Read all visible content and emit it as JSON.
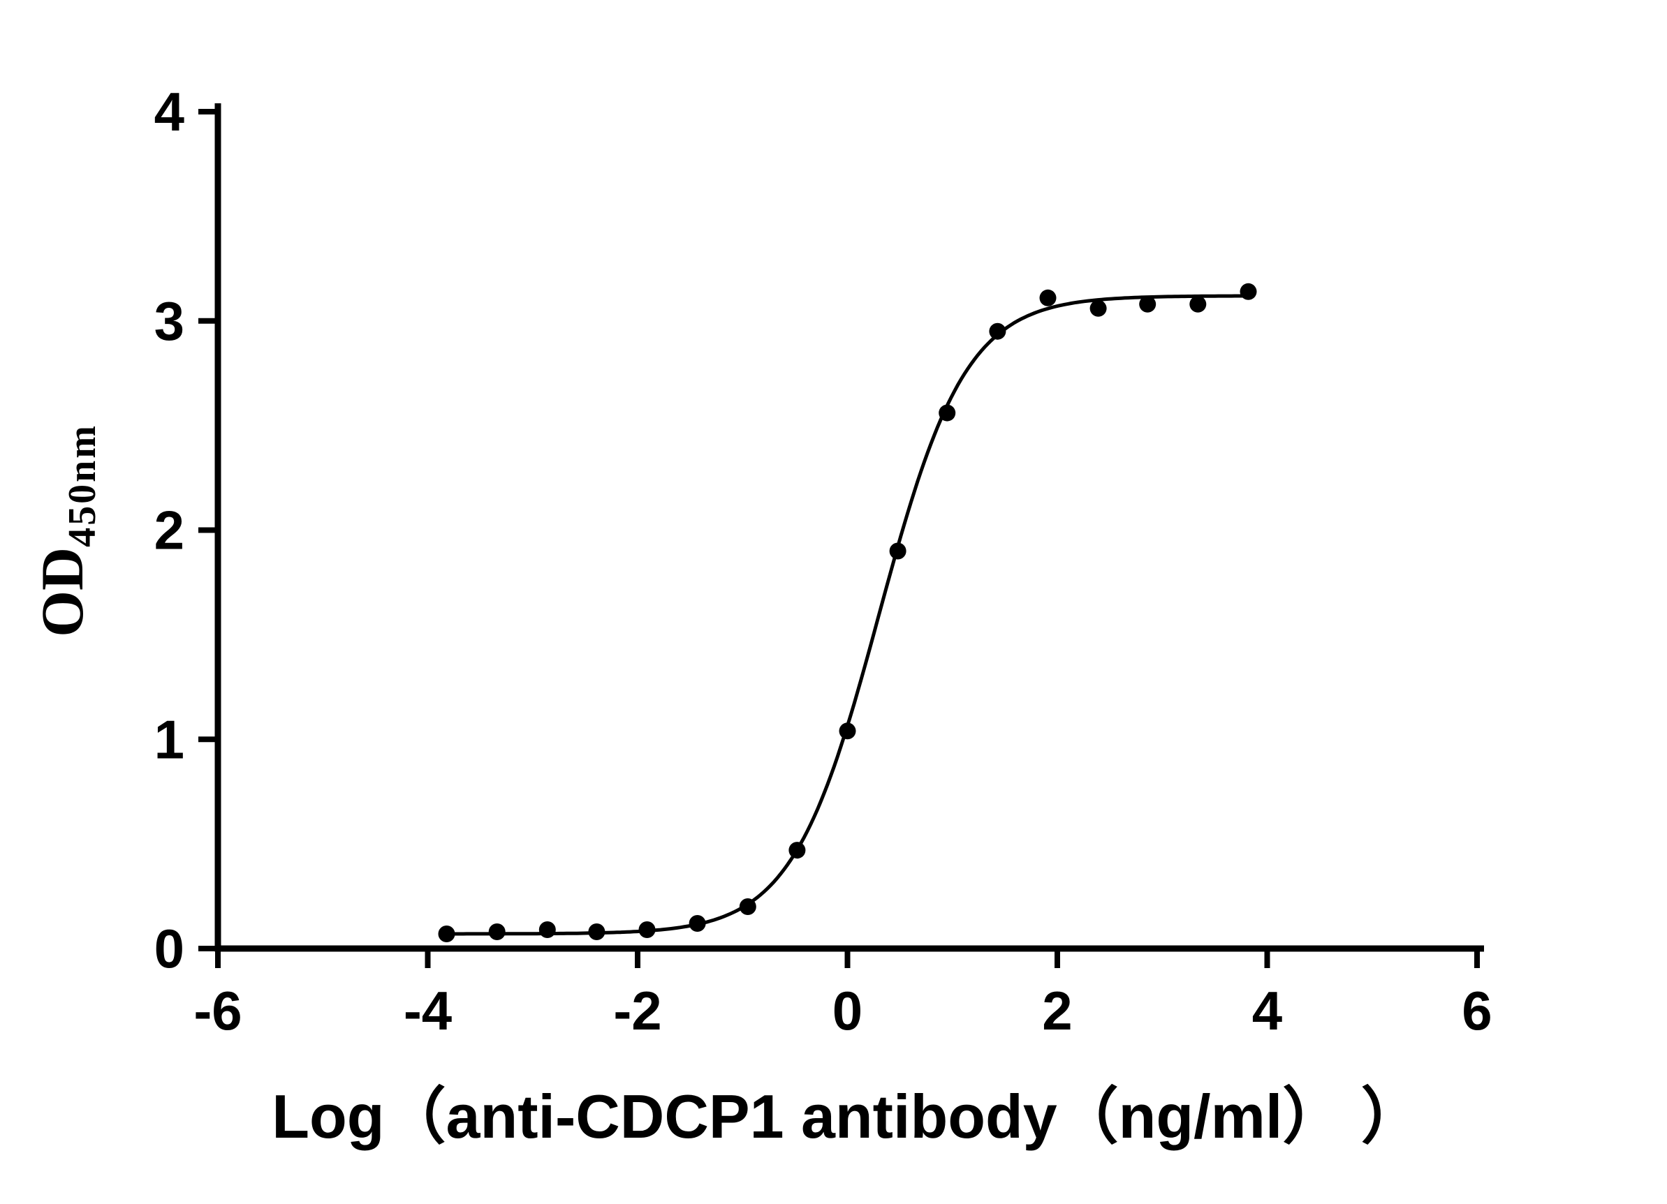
{
  "figure": {
    "background_color": "#ffffff",
    "description": "ELISA binding activity sigmoidal dose-response curve"
  },
  "chart_data": {
    "type": "scatter",
    "title": "",
    "xlabel": "Log（anti-CDCP1 antibody（ng/ml） ）",
    "ylabel_main": "OD",
    "ylabel_sub": "450nm",
    "xlim": [
      -6,
      6
    ],
    "ylim": [
      0,
      4
    ],
    "x_ticks": [
      -6,
      -4,
      -2,
      0,
      2,
      4,
      6
    ],
    "y_ticks": [
      0,
      1,
      2,
      3,
      4
    ],
    "grid": false,
    "legend": "none",
    "points": [
      {
        "x": -3.82,
        "od": 0.07
      },
      {
        "x": -3.34,
        "od": 0.08
      },
      {
        "x": -2.86,
        "od": 0.09
      },
      {
        "x": -2.39,
        "od": 0.08
      },
      {
        "x": -1.91,
        "od": 0.09
      },
      {
        "x": -1.43,
        "od": 0.12
      },
      {
        "x": -0.95,
        "od": 0.2
      },
      {
        "x": -0.48,
        "od": 0.47
      },
      {
        "x": 0.0,
        "od": 1.04
      },
      {
        "x": 0.48,
        "od": 1.9
      },
      {
        "x": 0.95,
        "od": 2.56
      },
      {
        "x": 1.43,
        "od": 2.95
      },
      {
        "x": 1.91,
        "od": 3.11
      },
      {
        "x": 2.39,
        "od": 3.06
      },
      {
        "x": 2.86,
        "od": 3.08
      },
      {
        "x": 3.34,
        "od": 3.08
      },
      {
        "x": 3.82,
        "od": 3.14
      }
    ],
    "fit_curve": {
      "model": "4PL-sigmoid",
      "bottom": 0.07,
      "top": 3.12,
      "log_ec50": 0.3,
      "hill_slope": 1.05,
      "x_start": -3.82,
      "x_end": 3.82
    },
    "colors": {
      "axis": "#000000",
      "points": "#000000",
      "curve": "#000000",
      "text": "#000000",
      "background": "#ffffff"
    }
  }
}
